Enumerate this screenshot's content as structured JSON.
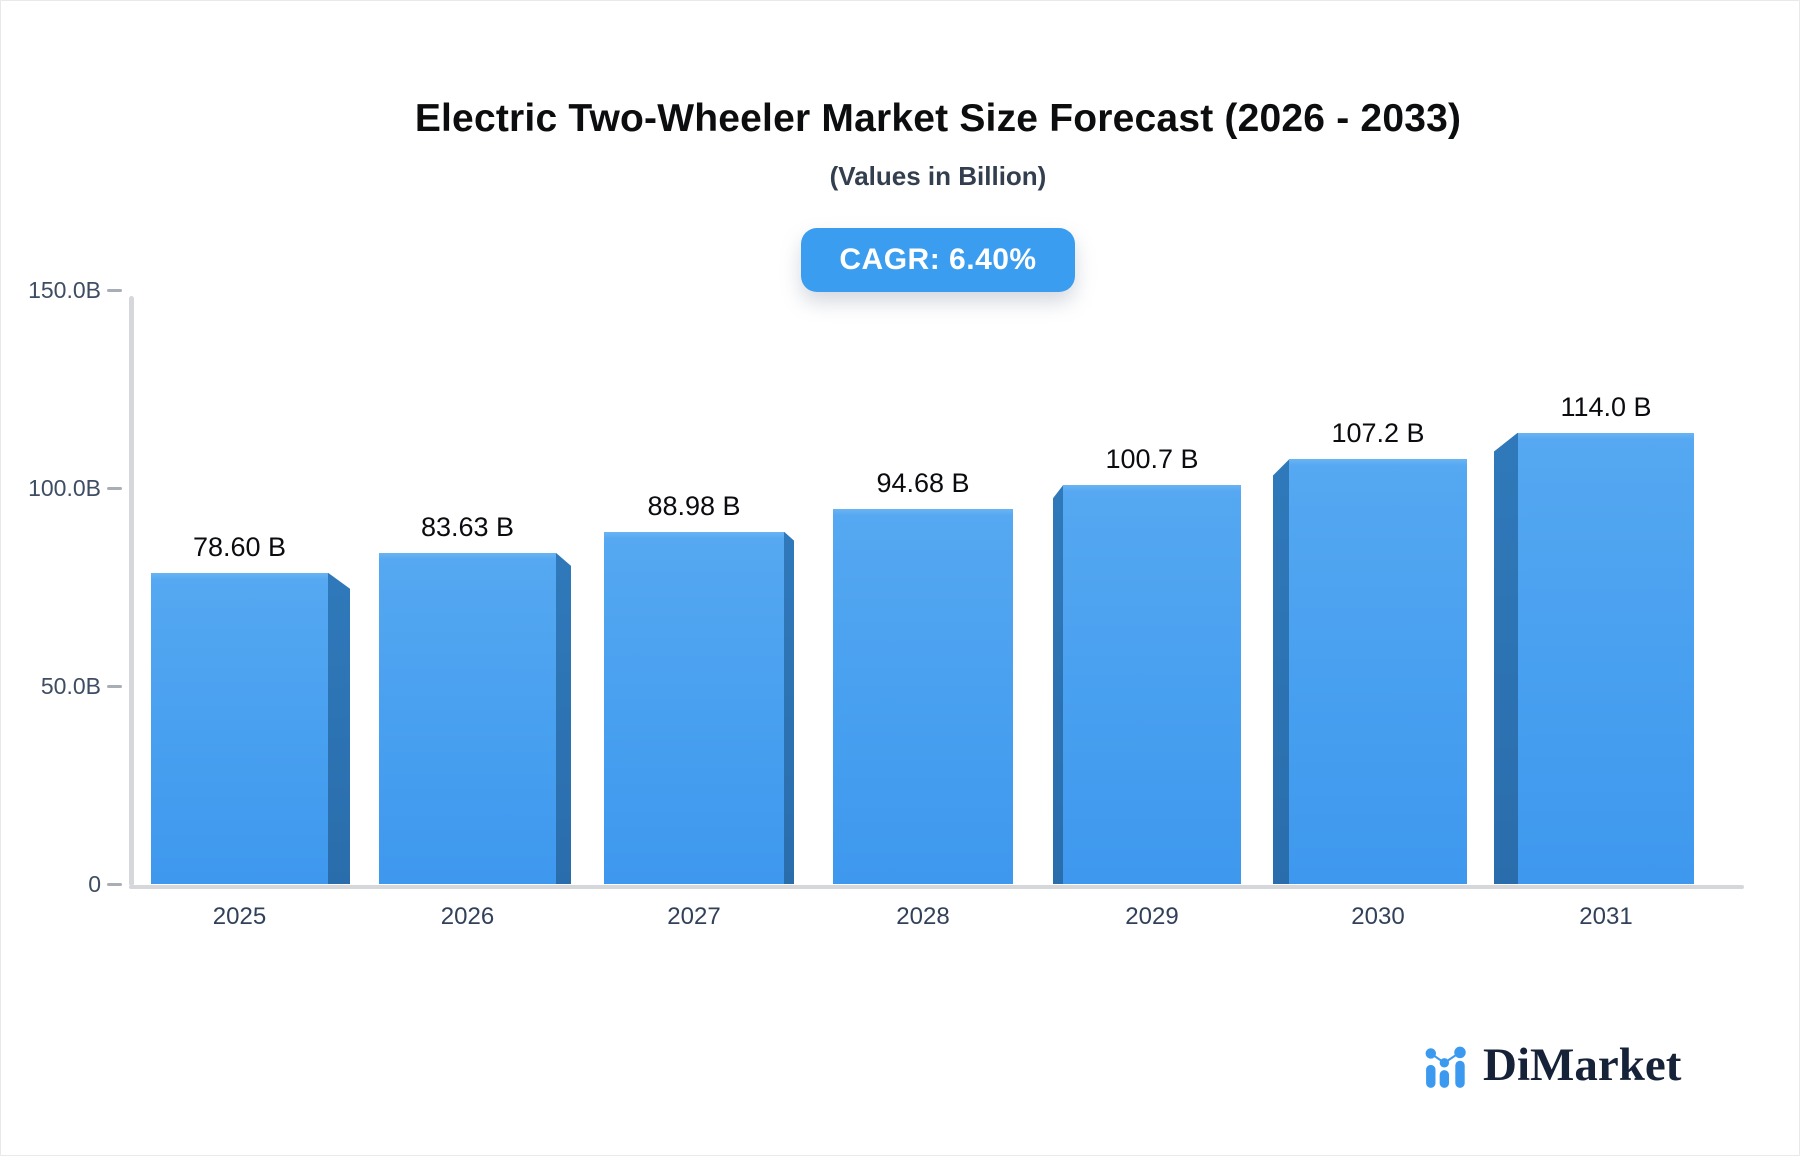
{
  "header": {
    "title": "Electric Two-Wheeler Market Size Forecast (2026 - 2033)",
    "subtitle": "(Values in Billion)",
    "cagr_badge": "CAGR: 6.40%"
  },
  "chart_data": {
    "type": "bar",
    "categories": [
      "2025",
      "2026",
      "2027",
      "2028",
      "2029",
      "2030",
      "2031"
    ],
    "values": [
      78.6,
      83.63,
      88.98,
      94.68,
      100.7,
      107.2,
      114.0
    ],
    "value_labels": [
      "78.60 B",
      "83.63 B",
      "88.98 B",
      "94.68 B",
      "100.7 B",
      "107.2 B",
      "114.0 B"
    ],
    "title": "Electric Two-Wheeler Market Size Forecast (2026 - 2033)",
    "subtitle": "(Values in Billion)",
    "annotation": "CAGR: 6.40%",
    "xlabel": "",
    "ylabel": "",
    "ylim": [
      0,
      150
    ],
    "ytick_labels": [
      "150.0B",
      "100.0B",
      "50.0B",
      "0"
    ],
    "ytick_values": [
      150,
      100,
      50,
      0
    ],
    "grid": false,
    "legend": "none",
    "bar_style": "3d-perspective-blue"
  },
  "colors": {
    "bar_fill_top": "#55a8f1",
    "bar_fill_bottom": "#3e98ee",
    "bar_side_face": "#2d74b4",
    "badge_background": "#3b9df0",
    "badge_text": "#ffffff",
    "axis_line": "#d6d7db",
    "axis_label": "#3e4d63",
    "value_label": "#0a0c10",
    "logo_blue": "#3b9af0",
    "logo_navy": "#152238"
  },
  "footer": {
    "brand": "DiMarket"
  }
}
